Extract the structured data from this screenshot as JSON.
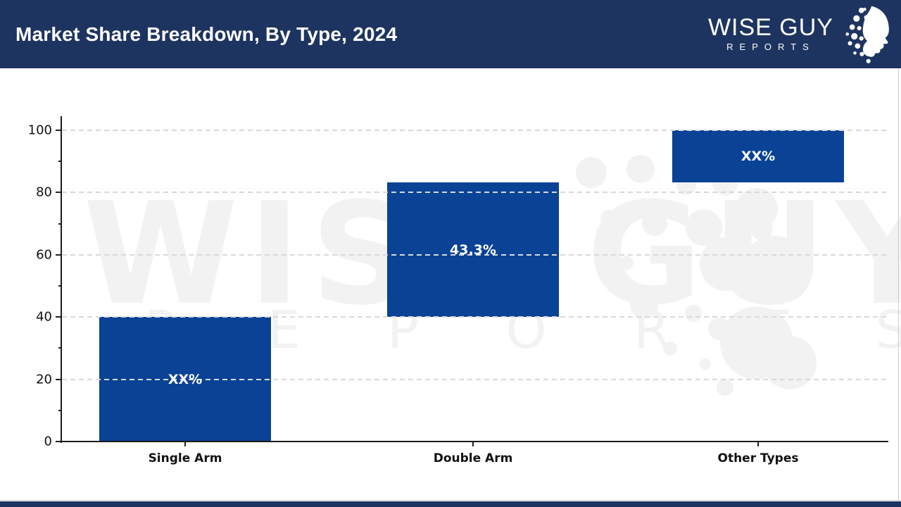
{
  "header": {
    "title": "Market Share Breakdown, By Type, 2024",
    "logo": {
      "line1": "WISE GUY",
      "line2": "REPORTS"
    }
  },
  "watermark": {
    "line1": "WISE GUY",
    "line2": "R E P O R T S"
  },
  "chart_data": {
    "type": "bar",
    "subtype": "floating-waterfall",
    "title": "Market Share Breakdown, By Type, 2024",
    "categories": [
      "Single Arm",
      "Double Arm",
      "Other Types"
    ],
    "bars": [
      {
        "category": "Single Arm",
        "start": 0,
        "end": 40,
        "label": "XX%"
      },
      {
        "category": "Double Arm",
        "start": 40,
        "end": 83.3,
        "label": "43.3%"
      },
      {
        "category": "Other Types",
        "start": 83.3,
        "end": 100,
        "label": "XX%"
      }
    ],
    "ylim": [
      0,
      100
    ],
    "yticks": [
      0,
      20,
      40,
      60,
      80,
      100
    ],
    "grid": "horizontal-dashed",
    "legend": "none",
    "bar_color": "#0a4296",
    "data_label_color": "#ffffff"
  },
  "colors": {
    "header_bg": "#1e3460",
    "footer_bg": "#1e3460",
    "bar": "#0a4296",
    "grid": "#d9d9d9",
    "axis": "#1a1a1a",
    "watermark": "#f2f2f2",
    "hairline": "#cccccc"
  }
}
